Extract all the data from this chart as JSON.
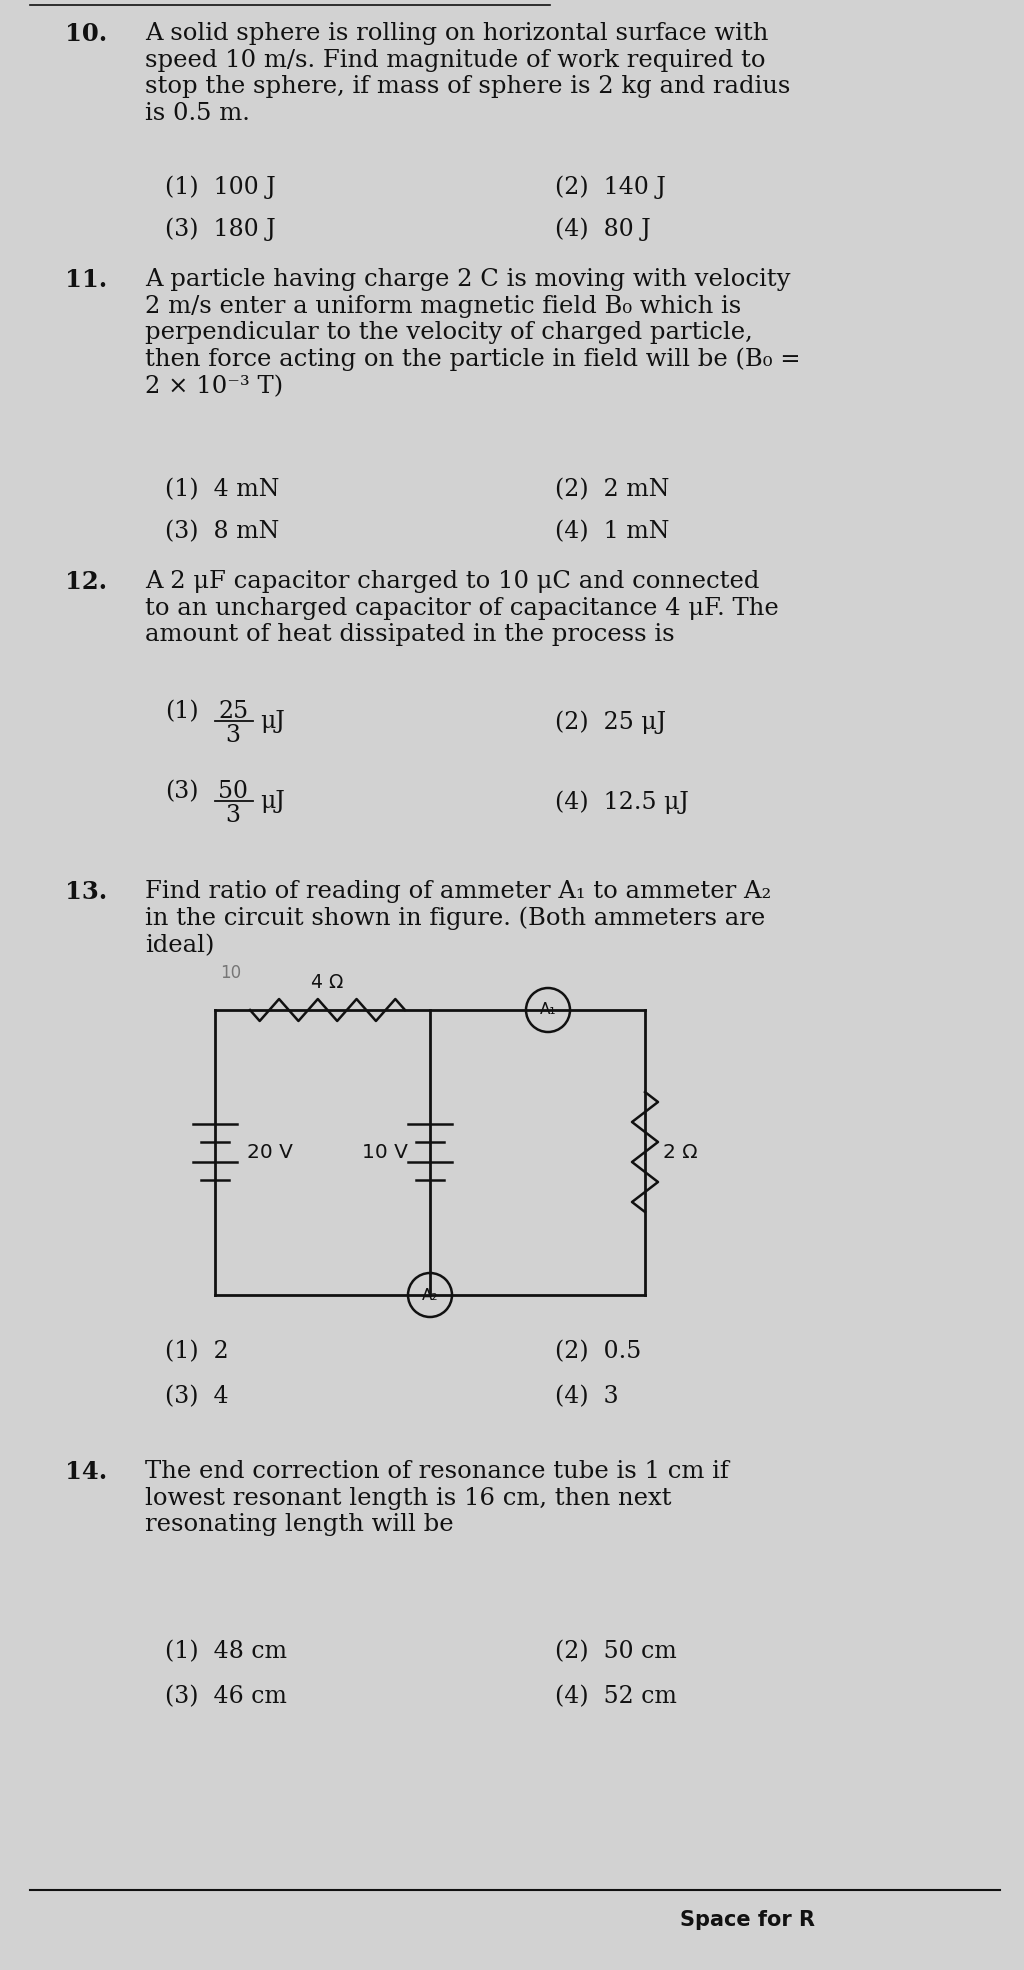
{
  "bg_color": "#d2d2d2",
  "text_color": "#111111",
  "font_size_q": 17.5,
  "font_size_opt": 17.0,
  "font_size_circuit": 13.5,
  "q10_text": "A solid sphere is rolling on horizontal surface with\nspeed 10 m/s. Find magnitude of work required to\nstop the sphere, if mass of sphere is 2 kg and radius\nis 0.5 m.",
  "q10_opts": [
    "(1)  100 J",
    "(2)  140 J",
    "(3)  180 J",
    "(4)  80 J"
  ],
  "q11_text": "A particle having charge 2 C is moving with velocity\n2 m/s enter a uniform magnetic field B₀ which is\nperpendicular to the velocity of charged particle,\nthen force acting on the particle in field will be (B₀ =\n2 × 10⁻³ T)",
  "q11_opts": [
    "(1)  4 mN",
    "(2)  2 mN",
    "(3)  8 mN",
    "(4)  1 mN"
  ],
  "q12_text": "A 2 μF capacitor charged to 10 μC and connected\nto an uncharged capacitor of capacitance 4 μF. The\namount of heat dissipated in the process is",
  "q12_opt1_pre": "(1)",
  "q12_opt1_num": "25",
  "q12_opt1_den": "3",
  "q12_opt1_suf": "μJ",
  "q12_opt2": "(2)  25 μJ",
  "q12_opt3_pre": "(3)",
  "q12_opt3_num": "50",
  "q12_opt3_den": "3",
  "q12_opt3_suf": "μJ",
  "q12_opt4": "(4)  12.5 μJ",
  "q13_text": "Find ratio of reading of ammeter A₁ to ammeter A₂\nin the circuit shown in figure. (Both ammeters are\nideal)",
  "q13_opts": [
    "(1)  2",
    "(2)  0.5",
    "(3)  4",
    "(4)  3"
  ],
  "q14_text": "The end correction of resonance tube is 1 cm if\nlowest resonant length is 16 cm, then next\nresonating length will be",
  "q14_opts": [
    "(1)  48 cm",
    "(2)  50 cm",
    "(3)  46 cm",
    "(4)  52 cm"
  ],
  "footer": "Space for R"
}
